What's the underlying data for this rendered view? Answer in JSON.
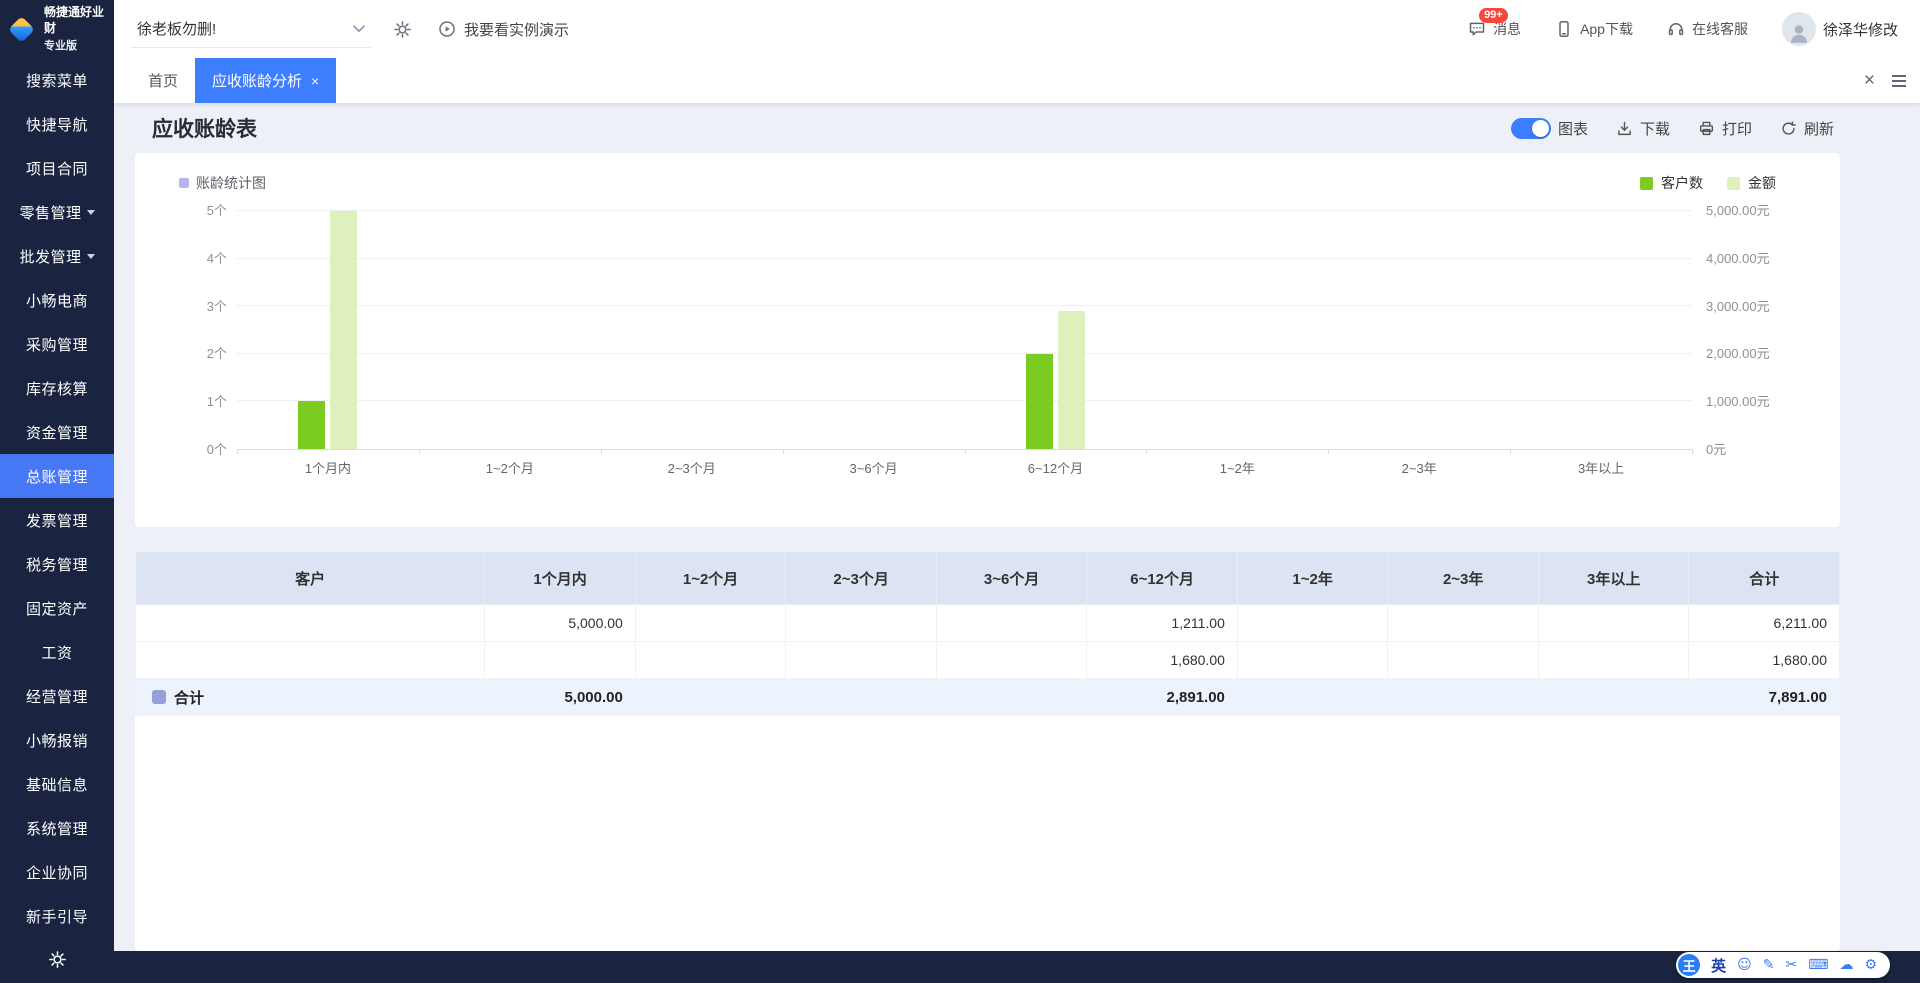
{
  "brand": {
    "name": "畅捷通好业财",
    "edition": "专业版"
  },
  "sidebar": {
    "items": [
      {
        "label": "搜索菜单"
      },
      {
        "label": "快捷导航"
      },
      {
        "label": "项目合同"
      },
      {
        "label": "零售管理",
        "expandable": true
      },
      {
        "label": "批发管理",
        "expandable": true
      },
      {
        "label": "小畅电商"
      },
      {
        "label": "采购管理"
      },
      {
        "label": "库存核算"
      },
      {
        "label": "资金管理"
      },
      {
        "label": "总账管理",
        "active": true
      },
      {
        "label": "发票管理"
      },
      {
        "label": "税务管理"
      },
      {
        "label": "固定资产"
      },
      {
        "label": "工资"
      },
      {
        "label": "经营管理"
      },
      {
        "label": "小畅报销"
      },
      {
        "label": "基础信息"
      },
      {
        "label": "系统管理"
      },
      {
        "label": "企业协同"
      },
      {
        "label": "新手引导"
      }
    ]
  },
  "topbar": {
    "company_select": {
      "value": "徐老板勿删!"
    },
    "demo_label": "我要看实例演示",
    "messages": {
      "label": "消息",
      "badge": "99+"
    },
    "app_download": "App下载",
    "online_service": "在线客服",
    "user_name": "徐泽华修改"
  },
  "tabs": [
    {
      "label": "首页",
      "active": false
    },
    {
      "label": "应收账龄分析",
      "active": true,
      "close": "×"
    }
  ],
  "page": {
    "title": "应收账龄表",
    "toolbar": {
      "chart_toggle": "图表",
      "download": "下载",
      "print": "打印",
      "refresh": "刷新"
    }
  },
  "chart_data": {
    "type": "bar",
    "title": "账龄统计图",
    "categories": [
      "1个月内",
      "1~2个月",
      "2~3个月",
      "3~6个月",
      "6~12个月",
      "1~2年",
      "2~3年",
      "3年以上"
    ],
    "series": [
      {
        "name": "客户数",
        "axis": "left",
        "color": "#7ccb22",
        "values": [
          1,
          0,
          0,
          0,
          2,
          0,
          0,
          0
        ]
      },
      {
        "name": "金额",
        "axis": "right",
        "color": "#ddf0be",
        "values": [
          5000,
          0,
          0,
          0,
          2891,
          0,
          0,
          0
        ]
      }
    ],
    "left_axis": {
      "max": 5,
      "ticks": [
        "0个",
        "1个",
        "2个",
        "3个",
        "4个",
        "5个"
      ]
    },
    "right_axis": {
      "max": 5000,
      "ticks": [
        "0元",
        "1,000.00元",
        "2,000.00元",
        "3,000.00元",
        "4,000.00元",
        "5,000.00元"
      ]
    },
    "legend_position": "top-right",
    "grid": true
  },
  "table": {
    "headers": [
      "客户",
      "1个月内",
      "1~2个月",
      "2~3个月",
      "3~6个月",
      "6~12个月",
      "1~2年",
      "2~3年",
      "3年以上",
      "合计"
    ],
    "rows": [
      {
        "customer_redacted": true,
        "values": [
          "5,000.00",
          "",
          "",
          "",
          "1,211.00",
          "",
          "",
          "",
          "6,211.00"
        ]
      },
      {
        "customer_redacted": true,
        "values": [
          "",
          "",
          "",
          "",
          "1,680.00",
          "",
          "",
          "",
          "1,680.00"
        ]
      }
    ],
    "total": {
      "label": "合计",
      "values": [
        "5,000.00",
        "",
        "",
        "",
        "2,891.00",
        "",
        "",
        "",
        "7,891.00"
      ]
    }
  },
  "ime": {
    "logo": "王",
    "lang": "英",
    "tools": [
      {
        "name": "emoji",
        "glyph": "☺"
      },
      {
        "name": "pen",
        "glyph": "✎"
      },
      {
        "name": "scissors",
        "glyph": "✂"
      },
      {
        "name": "keyboard",
        "glyph": "⌨"
      },
      {
        "name": "cloud",
        "glyph": "☁"
      },
      {
        "name": "settings",
        "glyph": "⚙"
      }
    ]
  },
  "colors": {
    "accent": "#3d7efe",
    "sidebar": "#1a2340",
    "active_item": "#4677f5",
    "badge": "#f5473c",
    "table_header_bg": "#dce3f2",
    "total_row_bg": "#edf3fd"
  }
}
